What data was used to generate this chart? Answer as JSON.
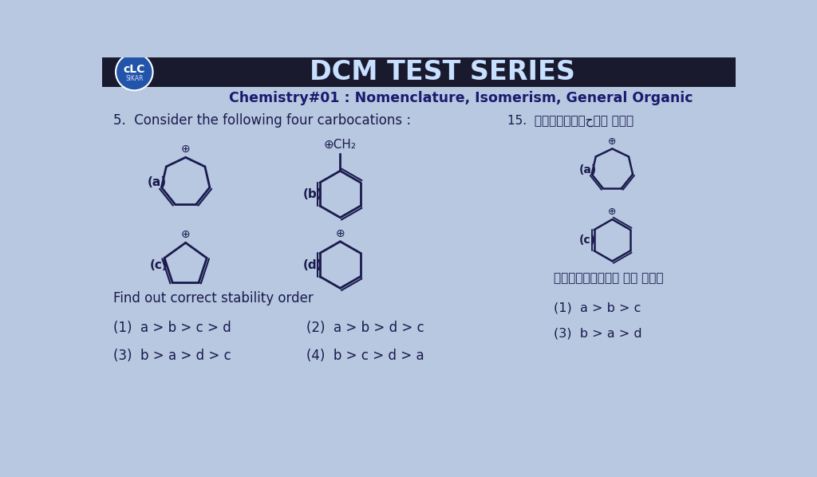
{
  "bg_color": "#b8c8e0",
  "header_bg": "#1a1a2e",
  "header_text": "DCM TEST SERIES",
  "header_color": "#c8e0ff",
  "subtitle": "Chemistry#01 : Nomenclature, Isomerism, General Organic",
  "subtitle_color": "#1a1a6e",
  "q_number": "5.",
  "q_text": "Consider the following four carbocations :",
  "q15_text": "15.  निम्नलिحित चार",
  "stability_text": "Find out correct stability order",
  "options": [
    "(1)  a > b > c > d",
    "(2)  a > b > d > c",
    "(3)  b > a > d > c",
    "(4)  b > c > d > a"
  ],
  "right_options": [
    "(1)  a > b > c",
    "(3)  b > a > d"
  ],
  "right_label": "स्थायित्व के सही",
  "text_color": "#1a1a4e",
  "logo_text": "cLC",
  "logo_subtext": "SIKAR"
}
